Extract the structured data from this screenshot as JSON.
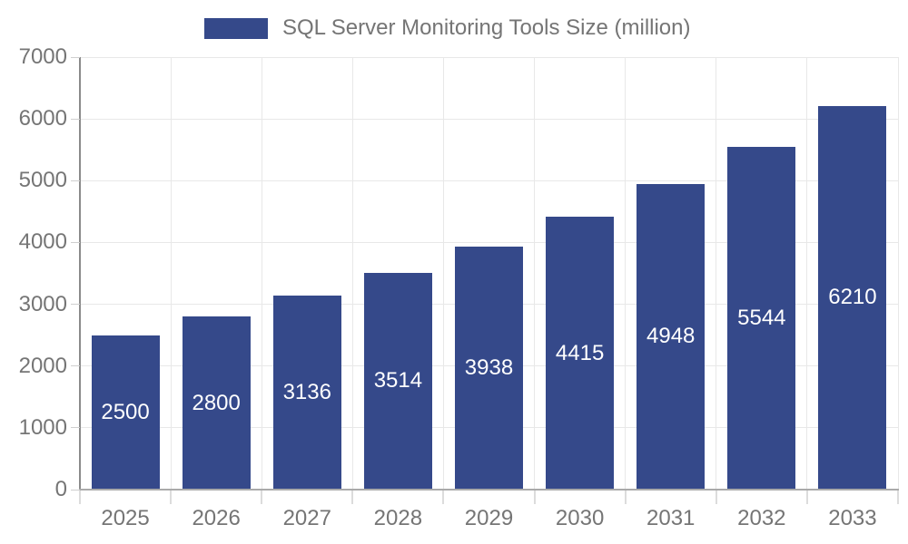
{
  "legend": {
    "label": "SQL Server Monitoring Tools Size (million)"
  },
  "chart_data": {
    "type": "bar",
    "title": "SQL Server Monitoring Tools Size (million)",
    "categories": [
      "2025",
      "2026",
      "2027",
      "2028",
      "2029",
      "2030",
      "2031",
      "2032",
      "2033"
    ],
    "values": [
      2500,
      2800,
      3136,
      3514,
      3938,
      4415,
      4948,
      5544,
      6210
    ],
    "xlabel": "",
    "ylabel": "",
    "ylim": [
      0,
      7000
    ],
    "ytick_step": 1000,
    "grid": true,
    "legend_position": "top-center",
    "bar_width_ratio": 0.75,
    "value_label_position": "inside-center",
    "colors": {
      "bar": "#35498A",
      "bar_label": "#FFFFFF",
      "grid_line": "#E8E8E8",
      "y_axis_line": "#8A8A8A",
      "x_axis_line": "#AAAAAA",
      "tick": "#CFCFCF",
      "axis_label": "#757575",
      "legend_text": "#757575",
      "background": "#FFFFFF"
    }
  }
}
